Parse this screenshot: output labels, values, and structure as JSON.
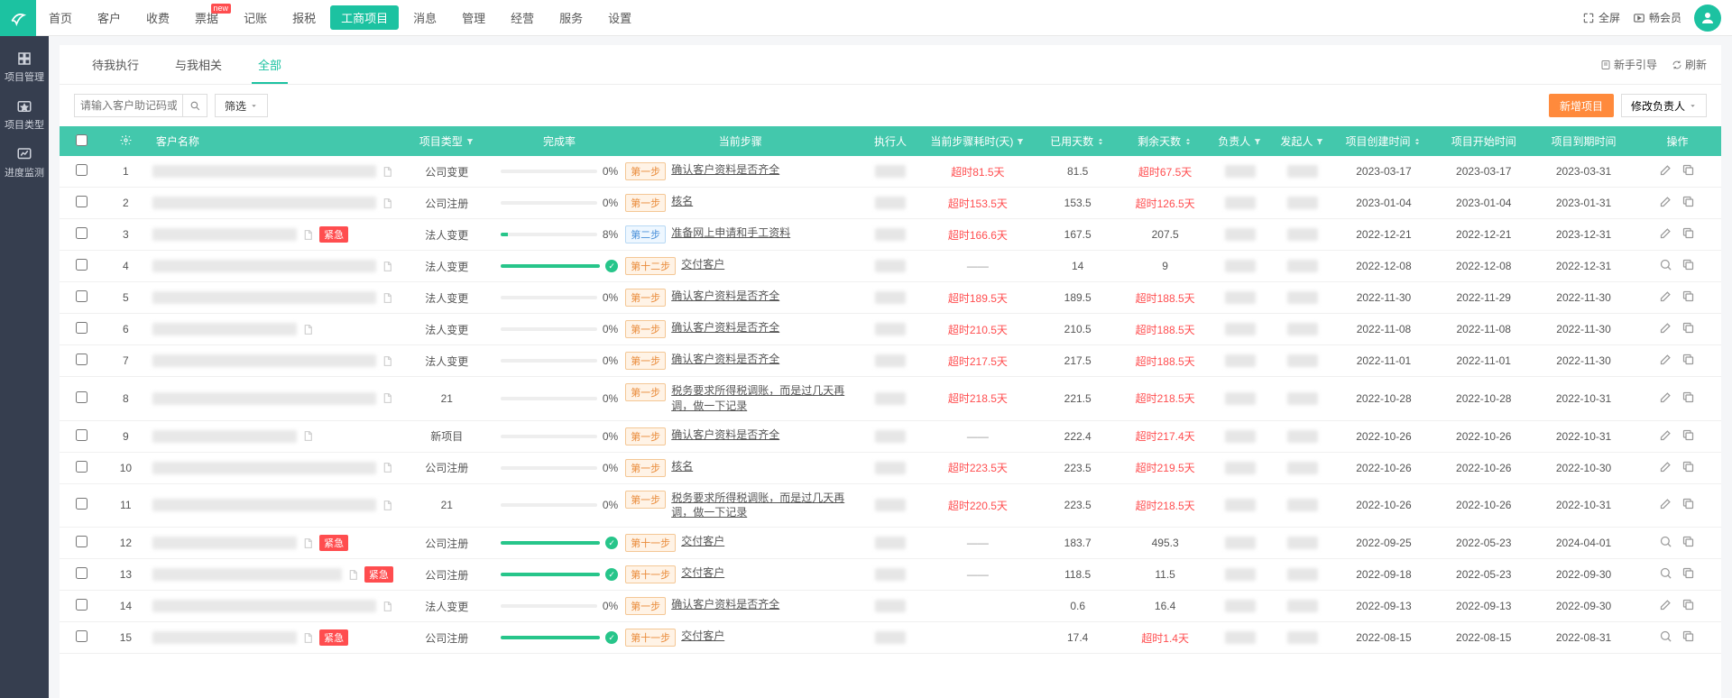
{
  "nav": {
    "items": [
      "首页",
      "客户",
      "收费",
      "票据",
      "记账",
      "报税",
      "工商项目",
      "消息",
      "管理",
      "经营",
      "服务",
      "设置"
    ],
    "active_index": 6,
    "badge_index": 3,
    "badge_text": "new"
  },
  "topRight": {
    "fullscreen": "全屏",
    "member": "畅会员"
  },
  "sidebar": {
    "items": [
      {
        "label": "项目管理",
        "icon": "grid"
      },
      {
        "label": "项目类型",
        "icon": "star"
      },
      {
        "label": "进度监测",
        "icon": "chart"
      }
    ]
  },
  "tabs": {
    "items": [
      "待我执行",
      "与我相关",
      "全部"
    ],
    "active_index": 2,
    "guide": "新手引导",
    "refresh": "刷新"
  },
  "toolbar": {
    "search_placeholder": "请输入客户助记码或名称",
    "filter": "筛选",
    "add": "新增项目",
    "change_owner": "修改负责人"
  },
  "columns": {
    "name": "客户名称",
    "type": "项目类型",
    "pct": "完成率",
    "step": "当前步骤",
    "exec": "执行人",
    "elapsed": "当前步骤耗时(天)",
    "used": "已用天数",
    "remain": "剩余天数",
    "owner": "负责人",
    "creator": "发起人",
    "created": "项目创建时间",
    "start": "项目开始时间",
    "due": "项目到期时间",
    "act": "操作"
  },
  "labels": {
    "urgent": "紧急",
    "overdue_prefix": "超时",
    "day_suffix": "天"
  },
  "rows": [
    {
      "idx": 1,
      "urgent": false,
      "type": "公司变更",
      "pct": 0,
      "stepTag": "第一步",
      "stepText": "确认客户资料是否齐全",
      "elapsed": "超时81.5天",
      "used": "81.5",
      "remain": "超时67.5天",
      "remainOver": true,
      "created": "2023-03-17",
      "start": "2023-03-17",
      "due": "2023-03-31",
      "editIcon": "edit"
    },
    {
      "idx": 2,
      "urgent": false,
      "type": "公司注册",
      "pct": 0,
      "stepTag": "第一步",
      "stepText": "核名",
      "elapsed": "超时153.5天",
      "used": "153.5",
      "remain": "超时126.5天",
      "remainOver": true,
      "created": "2023-01-04",
      "start": "2023-01-04",
      "due": "2023-01-31",
      "editIcon": "edit"
    },
    {
      "idx": 3,
      "urgent": true,
      "type": "法人变更",
      "pct": 8,
      "stepTag": "第二步",
      "stepTagBlue": true,
      "stepText": "准备网上申请和手工资料",
      "elapsed": "超时166.6天",
      "used": "167.5",
      "remain": "207.5",
      "remainOver": false,
      "created": "2022-12-21",
      "start": "2022-12-21",
      "due": "2023-12-31",
      "editIcon": "edit"
    },
    {
      "idx": 4,
      "urgent": false,
      "type": "法人变更",
      "pct": 100,
      "stepTag": "第十二步",
      "stepText": "交付客户",
      "elapsed": "——",
      "used": "14",
      "remain": "9",
      "remainOver": false,
      "created": "2022-12-08",
      "start": "2022-12-08",
      "due": "2022-12-31",
      "editIcon": "view"
    },
    {
      "idx": 5,
      "urgent": false,
      "type": "法人变更",
      "pct": 0,
      "stepTag": "第一步",
      "stepText": "确认客户资料是否齐全",
      "elapsed": "超时189.5天",
      "used": "189.5",
      "remain": "超时188.5天",
      "remainOver": true,
      "created": "2022-11-30",
      "start": "2022-11-29",
      "due": "2022-11-30",
      "editIcon": "edit"
    },
    {
      "idx": 6,
      "urgent": false,
      "type": "法人变更",
      "pct": 0,
      "stepTag": "第一步",
      "stepText": "确认客户资料是否齐全",
      "elapsed": "超时210.5天",
      "used": "210.5",
      "remain": "超时188.5天",
      "remainOver": true,
      "created": "2022-11-08",
      "start": "2022-11-08",
      "due": "2022-11-30",
      "editIcon": "edit"
    },
    {
      "idx": 7,
      "urgent": false,
      "type": "法人变更",
      "pct": 0,
      "stepTag": "第一步",
      "stepText": "确认客户资料是否齐全",
      "elapsed": "超时217.5天",
      "used": "217.5",
      "remain": "超时188.5天",
      "remainOver": true,
      "created": "2022-11-01",
      "start": "2022-11-01",
      "due": "2022-11-30",
      "editIcon": "edit"
    },
    {
      "idx": 8,
      "urgent": false,
      "type": "21",
      "pct": 0,
      "stepTag": "第一步",
      "stepText": "税务要求所得税调账，而是过几天再调，做一下记录",
      "elapsed": "超时218.5天",
      "used": "221.5",
      "remain": "超时218.5天",
      "remainOver": true,
      "created": "2022-10-28",
      "start": "2022-10-28",
      "due": "2022-10-31",
      "editIcon": "edit"
    },
    {
      "idx": 9,
      "urgent": false,
      "type": "新项目",
      "pct": 0,
      "stepTag": "第一步",
      "stepText": "确认客户资料是否齐全",
      "elapsed": "——",
      "used": "222.4",
      "remain": "超时217.4天",
      "remainOver": true,
      "created": "2022-10-26",
      "start": "2022-10-26",
      "due": "2022-10-31",
      "editIcon": "edit"
    },
    {
      "idx": 10,
      "urgent": false,
      "type": "公司注册",
      "pct": 0,
      "stepTag": "第一步",
      "stepText": "核名",
      "elapsed": "超时223.5天",
      "used": "223.5",
      "remain": "超时219.5天",
      "remainOver": true,
      "created": "2022-10-26",
      "start": "2022-10-26",
      "due": "2022-10-30",
      "editIcon": "edit"
    },
    {
      "idx": 11,
      "urgent": false,
      "type": "21",
      "pct": 0,
      "stepTag": "第一步",
      "stepText": "税务要求所得税调账，而是过几天再调，做一下记录",
      "elapsed": "超时220.5天",
      "used": "223.5",
      "remain": "超时218.5天",
      "remainOver": true,
      "created": "2022-10-26",
      "start": "2022-10-26",
      "due": "2022-10-31",
      "editIcon": "edit"
    },
    {
      "idx": 12,
      "urgent": true,
      "type": "公司注册",
      "pct": 100,
      "stepTag": "第十一步",
      "stepText": "交付客户",
      "elapsed": "——",
      "used": "183.7",
      "remain": "495.3",
      "remainOver": false,
      "created": "2022-09-25",
      "start": "2022-05-23",
      "due": "2024-04-01",
      "editIcon": "view"
    },
    {
      "idx": 13,
      "urgent": true,
      "type": "公司注册",
      "pct": 100,
      "stepTag": "第十一步",
      "stepText": "交付客户",
      "elapsed": "——",
      "used": "118.5",
      "remain": "11.5",
      "remainOver": false,
      "created": "2022-09-18",
      "start": "2022-05-23",
      "due": "2022-09-30",
      "editIcon": "view"
    },
    {
      "idx": 14,
      "urgent": false,
      "type": "法人变更",
      "pct": 0,
      "stepTag": "第一步",
      "stepText": "确认客户资料是否齐全",
      "elapsed": "",
      "used": "0.6",
      "remain": "16.4",
      "remainOver": false,
      "created": "2022-09-13",
      "start": "2022-09-13",
      "due": "2022-09-30",
      "editIcon": "edit"
    },
    {
      "idx": 15,
      "urgent": true,
      "type": "公司注册",
      "pct": 100,
      "stepTag": "第十一步",
      "stepText": "交付客户",
      "elapsed": "",
      "used": "17.4",
      "remain": "超时1.4天",
      "remainOver": true,
      "created": "2022-08-15",
      "start": "2022-08-15",
      "due": "2022-08-31",
      "editIcon": "view"
    }
  ]
}
